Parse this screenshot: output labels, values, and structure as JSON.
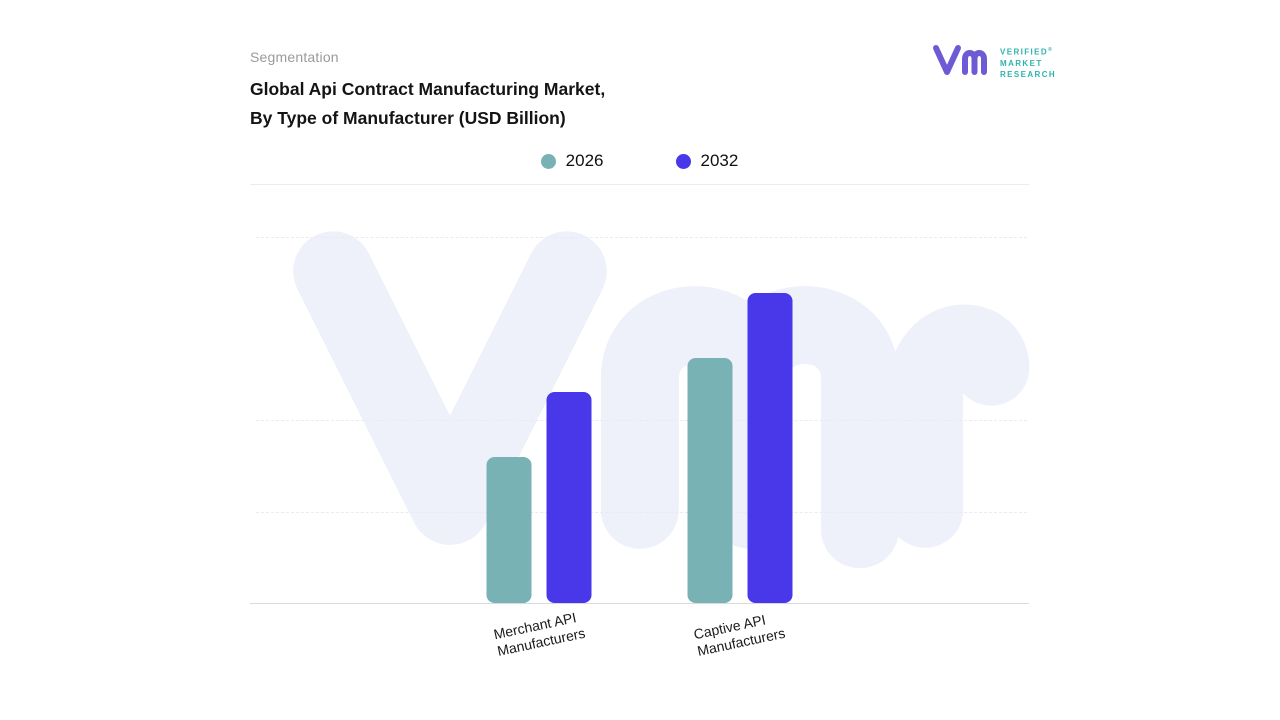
{
  "header": {
    "section_label": "Segmentation",
    "title_line1": "Global Api Contract Manufacturing Market,",
    "title_line2": "By Type of Manufacturer (USD Billion)"
  },
  "logo": {
    "brand_lines": [
      "VERIFIED",
      "MARKET",
      "RESEARCH"
    ],
    "registered_mark": "®",
    "monogram_color": "#6c5bd4",
    "text_color": "#2fb3ad"
  },
  "watermark": {
    "label": "vmr-monogram",
    "color": "#eef0fa"
  },
  "chart_data": {
    "type": "bar",
    "title": "Global Api Contract Manufacturing Market, By Type of Manufacturer (USD Billion)",
    "categories": [
      [
        "Merchant API",
        "Manufacturers"
      ],
      [
        "Captive API",
        "Manufacturers"
      ]
    ],
    "series": [
      {
        "name": "2026",
        "color": "#79b2b4",
        "values": [
          47,
          79
        ]
      },
      {
        "name": "2032",
        "color": "#4838ea",
        "values": [
          68,
          100
        ]
      }
    ],
    "ylim": [
      0,
      118
    ],
    "grid": "dashed-horizontal",
    "legend_position": "top-center",
    "value_labels": false,
    "group_centers_pct": [
      37.1,
      62.9
    ]
  }
}
